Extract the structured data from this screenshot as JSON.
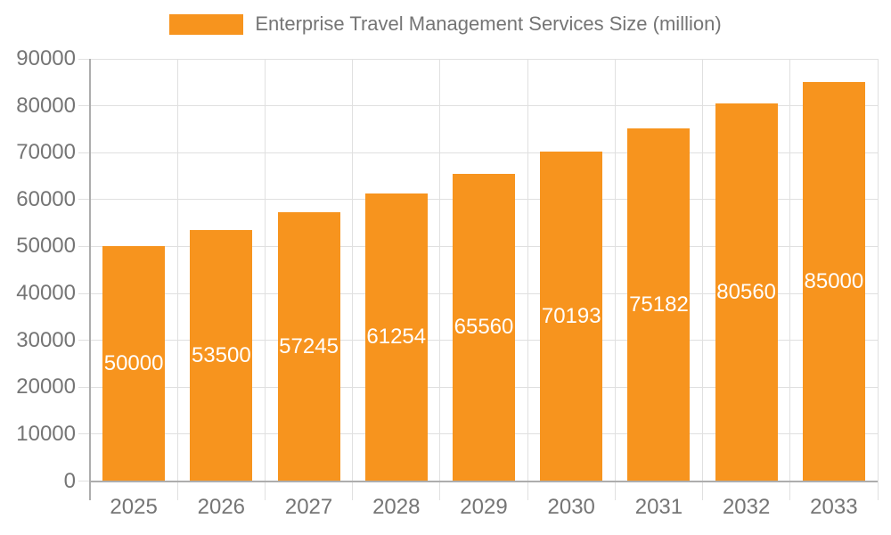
{
  "legend": {
    "label": "Enterprise Travel Management Services Size (million)"
  },
  "chart_data": {
    "type": "bar",
    "title": "Enterprise Travel Management Services Size (million)",
    "categories": [
      "2025",
      "2026",
      "2027",
      "2028",
      "2029",
      "2030",
      "2031",
      "2032",
      "2033"
    ],
    "series": [
      {
        "name": "Enterprise Travel Management Services Size (million)",
        "values": [
          50000,
          53500,
          57245,
          61254,
          65560,
          70193,
          75182,
          80560,
          85000
        ]
      }
    ],
    "values": [
      50000,
      53500,
      57245,
      61254,
      65560,
      70193,
      75182,
      80560,
      85000
    ],
    "value_labels": [
      "50000",
      "53500",
      "57245",
      "61254",
      "65560",
      "70193",
      "75182",
      "80560",
      "85000"
    ],
    "xlabel": "",
    "ylabel": "",
    "ylim": [
      0,
      90000
    ],
    "yticks": [
      0,
      10000,
      20000,
      30000,
      40000,
      50000,
      60000,
      70000,
      80000,
      90000
    ],
    "ytick_labels": [
      "0",
      "10000",
      "20000",
      "30000",
      "40000",
      "50000",
      "60000",
      "70000",
      "80000",
      "90000"
    ],
    "grid": true,
    "legend_position": "top",
    "colors": {
      "bar": "#F7941E",
      "value_label": "#FFFFFF",
      "axis_text": "#757575",
      "grid_line": "#E0E0E0",
      "axis_line": "#ADADAD"
    }
  }
}
